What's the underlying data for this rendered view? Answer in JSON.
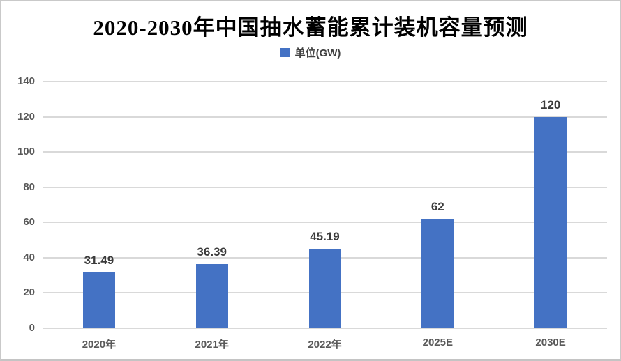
{
  "chart_data": {
    "type": "bar",
    "title": "2020-2030年中国抽水蓄能累计装机容量预测",
    "legend": "单位(GW)",
    "legend_position": "top",
    "categories": [
      "2020年",
      "2021年",
      "2022年",
      "2025E",
      "2030E"
    ],
    "values": [
      31.49,
      36.39,
      45.19,
      62,
      120
    ],
    "value_labels": [
      "31.49",
      "36.39",
      "45.19",
      "62",
      "120"
    ],
    "xlabel": "",
    "ylabel": "",
    "ylim": [
      0,
      140
    ],
    "yticks": [
      0,
      20,
      40,
      60,
      80,
      100,
      120,
      140
    ],
    "grid": "horizontal",
    "colors": {
      "bar": "#4472C4",
      "gridline": "#D9D9D9",
      "axis_label": "#595959",
      "data_label": "#3B3B3B",
      "title": "#000000",
      "frame_border": "#C9C9C9"
    }
  }
}
